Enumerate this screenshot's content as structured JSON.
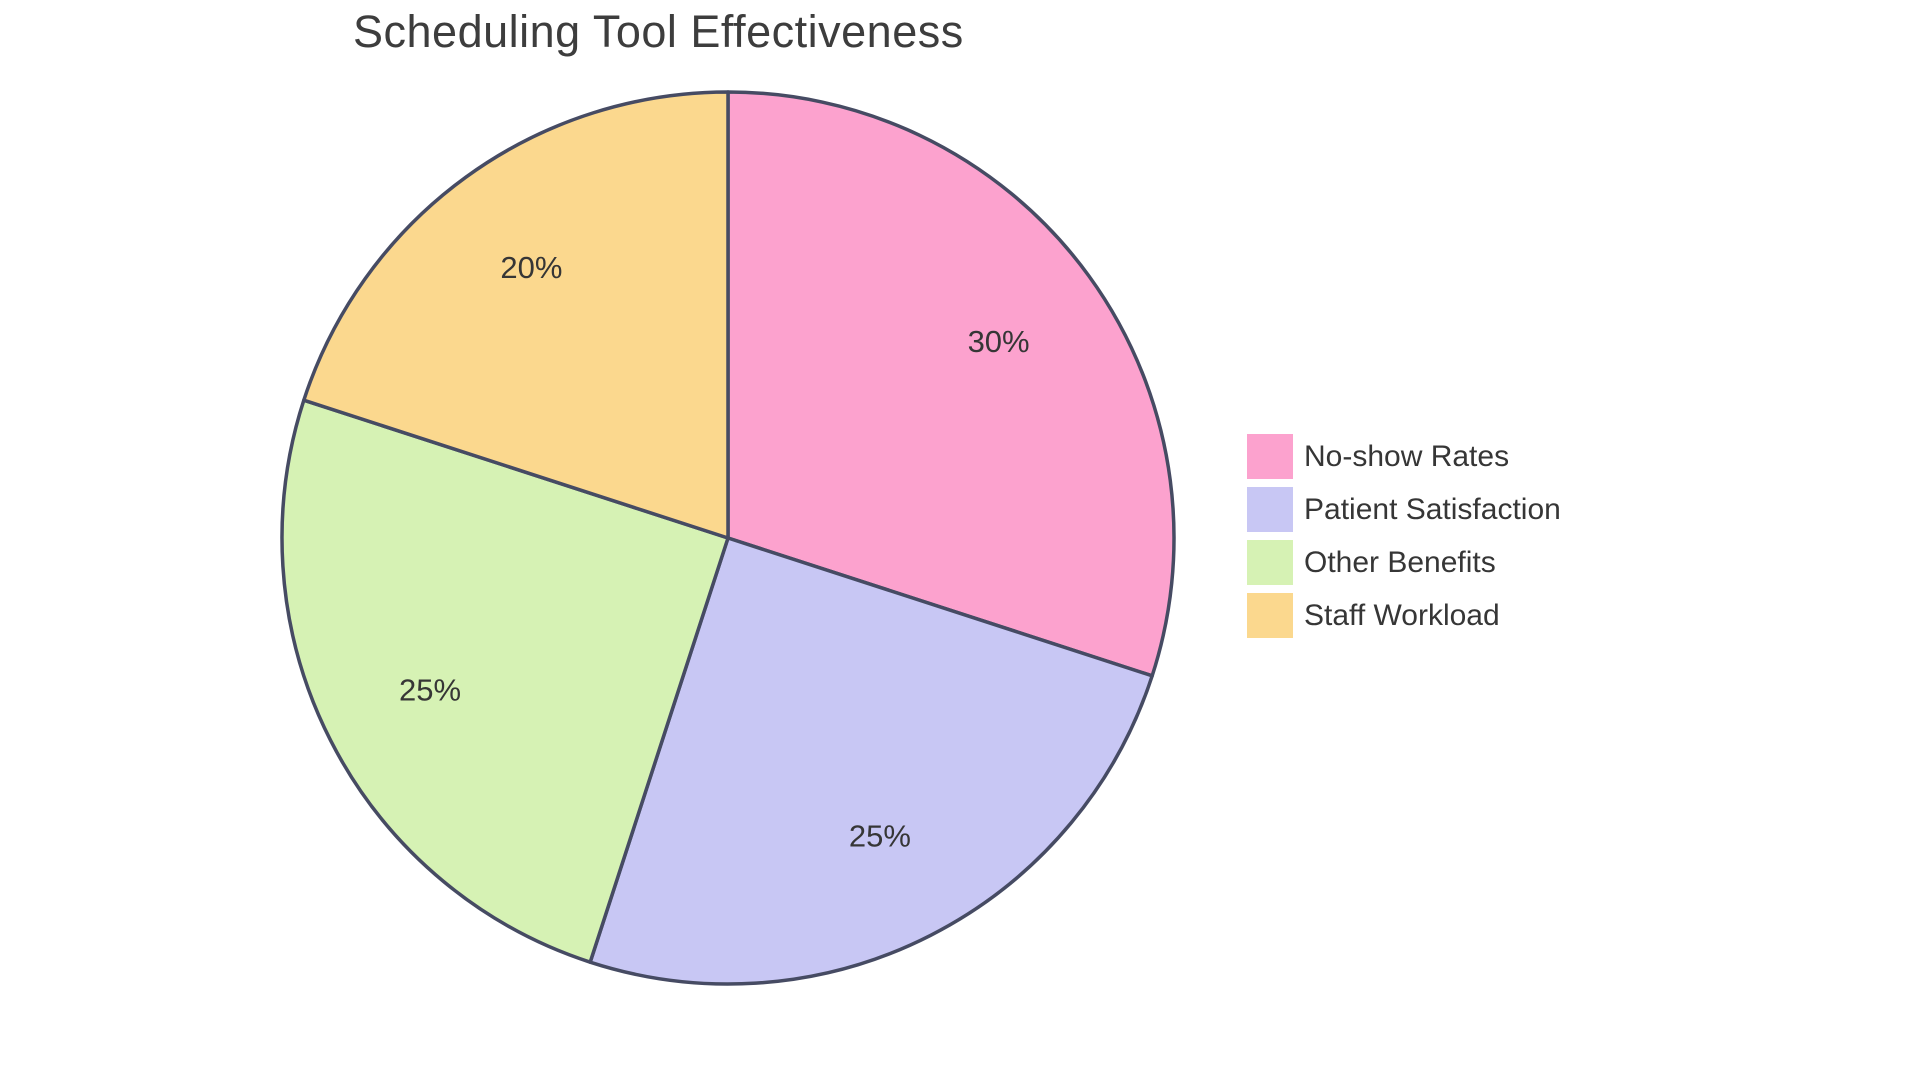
{
  "chart_data": {
    "type": "pie",
    "title": "Scheduling Tool Effectiveness",
    "direction": "clockwise",
    "start_angle": "top",
    "legend_position": "right-middle",
    "background_color": "#ffffff",
    "slice_border_color": "#464B63",
    "label_color": "#363636",
    "title_color": "#3d3d3d",
    "slices": [
      {
        "name": "No-show Rates",
        "value": 30,
        "pct_label": "30%",
        "color": "#FCA2CE"
      },
      {
        "name": "Patient Satisfaction",
        "value": 25,
        "pct_label": "25%",
        "color": "#C8C7F4"
      },
      {
        "name": "Other Benefits",
        "value": 25,
        "pct_label": "25%",
        "color": "#D6F2B4"
      },
      {
        "name": "Staff Workload",
        "value": 20,
        "pct_label": "20%",
        "color": "#FBD88E"
      }
    ]
  }
}
